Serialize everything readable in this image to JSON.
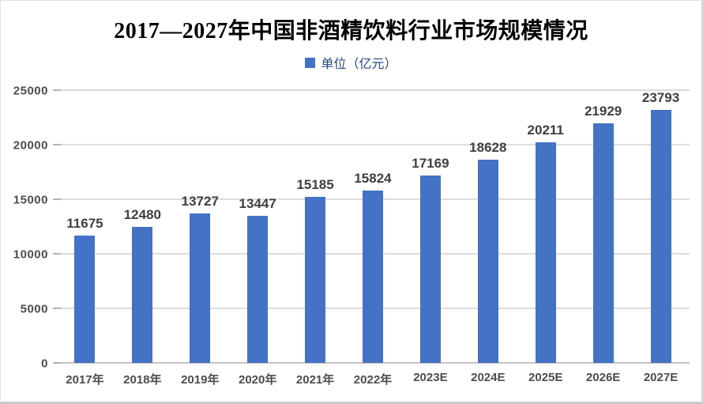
{
  "header": {
    "title": "2017—2027年中国非酒精饮料行业市场规模情况"
  },
  "legend": {
    "label": "单位（亿元）",
    "swatch_color": "#4472C4"
  },
  "colors": {
    "bar": "#4472C4",
    "gridline": "#dddddd",
    "axis_text": "#4d4d4d",
    "data_label_text": "#3f3f3f",
    "legend_text": "#24477e"
  },
  "chart_data": {
    "type": "bar",
    "title": "2017—2027年中国非酒精饮料行业市场规模情况",
    "categories": [
      "2017年",
      "2018年",
      "2019年",
      "2020年",
      "2021年",
      "2022年",
      "2023E",
      "2024E",
      "2025E",
      "2026E",
      "2027E"
    ],
    "values": [
      11675,
      12480,
      13727,
      13447,
      15185,
      15824,
      17169,
      18628,
      20211,
      21929,
      23793
    ],
    "series_name": "单位（亿元）",
    "xlabel": "",
    "ylabel": "",
    "ylim": [
      0,
      25000
    ],
    "yticks": [
      0,
      5000,
      10000,
      15000,
      20000,
      25000
    ],
    "grid": true,
    "legend_position": "top",
    "data_labels": true,
    "bar_color": "#4472C4"
  }
}
